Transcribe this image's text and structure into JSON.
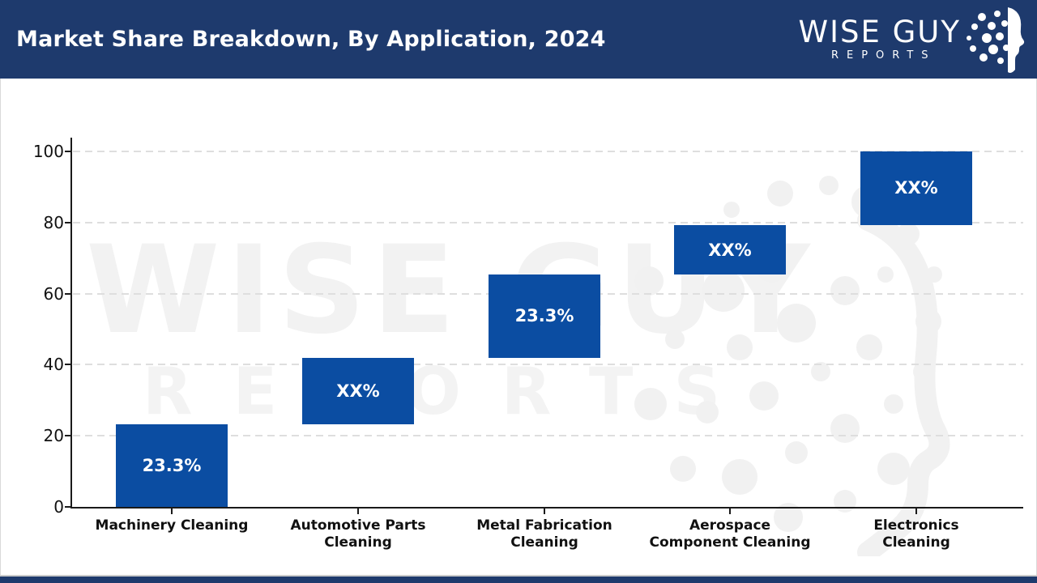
{
  "header": {
    "title": "Market Share Breakdown, By Application, 2024",
    "bg_color": "#1e3a6d",
    "logo": {
      "wordmark": "WISE GUY",
      "subtext": "REPORTS"
    }
  },
  "watermark": {
    "line1": "WISE GUY",
    "line2": "REPORTS"
  },
  "chart_data": {
    "type": "bar",
    "subtype": "floating-segment-bars",
    "title": "Market Share Breakdown, By Application, 2024",
    "categories": [
      "Machinery Cleaning",
      "Automotive Parts Cleaning",
      "Metal Fabrication Cleaning",
      "Aerospace Component Cleaning",
      "Electronics Cleaning"
    ],
    "category_lines": [
      [
        "Machinery Cleaning"
      ],
      [
        "Automotive Parts",
        "Cleaning"
      ],
      [
        "Metal Fabrication",
        "Cleaning"
      ],
      [
        "Aerospace",
        "Component Cleaning"
      ],
      [
        "Electronics",
        "Cleaning"
      ]
    ],
    "bars": [
      {
        "category": "Machinery Cleaning",
        "start": 0,
        "end": 23.3,
        "label": "23.3%"
      },
      {
        "category": "Automotive Parts Cleaning",
        "start": 23.3,
        "end": 42,
        "label": "XX%"
      },
      {
        "category": "Metal Fabrication Cleaning",
        "start": 42,
        "end": 65.3,
        "label": "23.3%"
      },
      {
        "category": "Aerospace Component Cleaning",
        "start": 65.3,
        "end": 79.3,
        "label": "XX%"
      },
      {
        "category": "Electronics Cleaning",
        "start": 79.3,
        "end": 100,
        "label": "XX%"
      }
    ],
    "yticks": [
      0,
      20,
      40,
      60,
      80,
      100
    ],
    "ylim": [
      0,
      105
    ],
    "xlabel": "",
    "ylabel": "",
    "grid": "horizontal-dashed",
    "legend": "none",
    "bar_color": "#0b4da2",
    "bar_label_color": "#ffffff",
    "axis_color": "#1a1a1a",
    "grid_color": "#dedede"
  },
  "colors": {
    "header_bg": "#1e3a6d",
    "footer_bg": "#1e3a6d",
    "bar": "#0b4da2",
    "watermark": "#f2f2f2"
  }
}
